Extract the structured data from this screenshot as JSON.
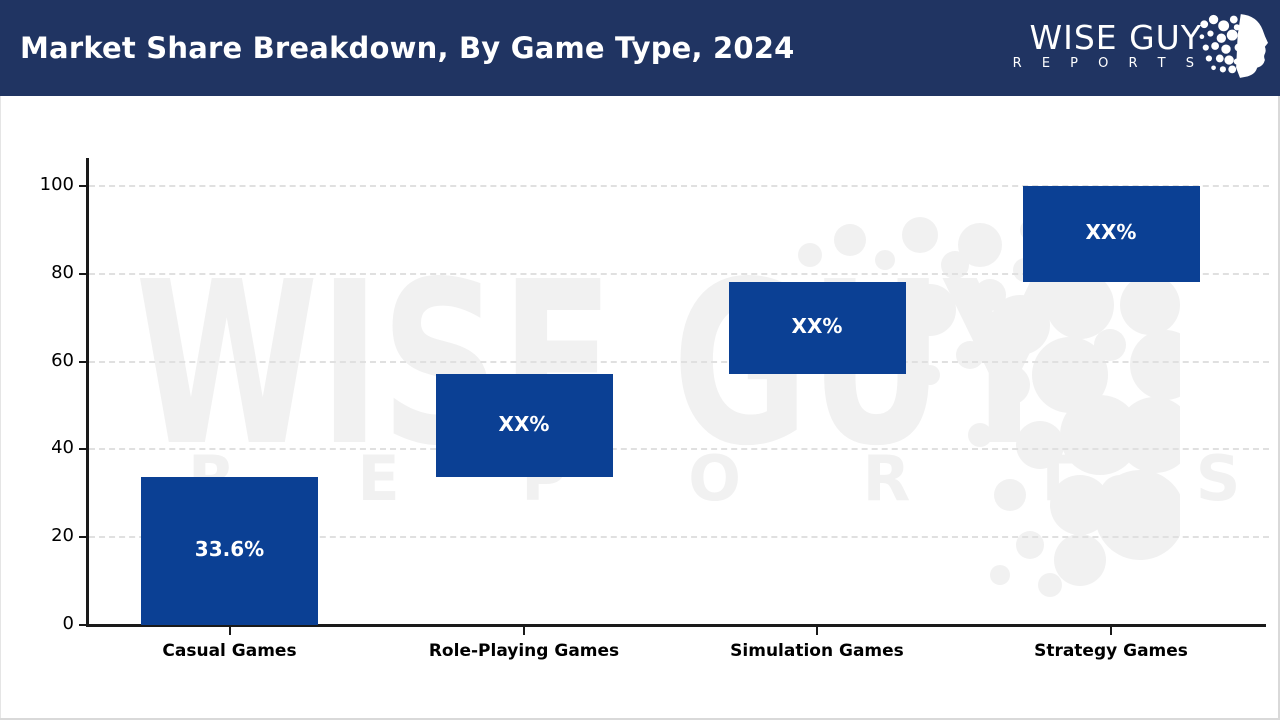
{
  "header": {
    "title": "Market Share Breakdown, By Game Type, 2024",
    "bg_color": "#203462",
    "logo": {
      "name": "WISE GUY",
      "tagline": "R E P O R T S"
    }
  },
  "watermark": {
    "word": "WISE GUY",
    "tagline": "R E P O R T S"
  },
  "chart_data": {
    "type": "bar",
    "subtype": "waterfall",
    "title": "Market Share Breakdown, By Game Type, 2024",
    "categories": [
      "Casual Games",
      "Role-Playing Games",
      "Simulation Games",
      "Strategy Games"
    ],
    "segments": [
      {
        "category": "Casual Games",
        "start": 0,
        "end": 33.6,
        "label": "33.6%"
      },
      {
        "category": "Role-Playing Games",
        "start": 33.6,
        "end": 57.1,
        "label": "XX%"
      },
      {
        "category": "Simulation Games",
        "start": 57.1,
        "end": 78.1,
        "label": "XX%"
      },
      {
        "category": "Strategy Games",
        "start": 78.1,
        "end": 100,
        "label": "XX%"
      }
    ],
    "yticks": [
      0,
      20,
      40,
      60,
      80,
      100
    ],
    "ylim": [
      0,
      107
    ],
    "xlabel": "",
    "ylabel": "",
    "grid": {
      "horizontal": true,
      "style": "dashed",
      "color": "#e0e0e0"
    },
    "bar_color": "#0b4094",
    "bar_label_color": "#ffffff",
    "axis_color": "#1a1a1a",
    "legend": null
  }
}
